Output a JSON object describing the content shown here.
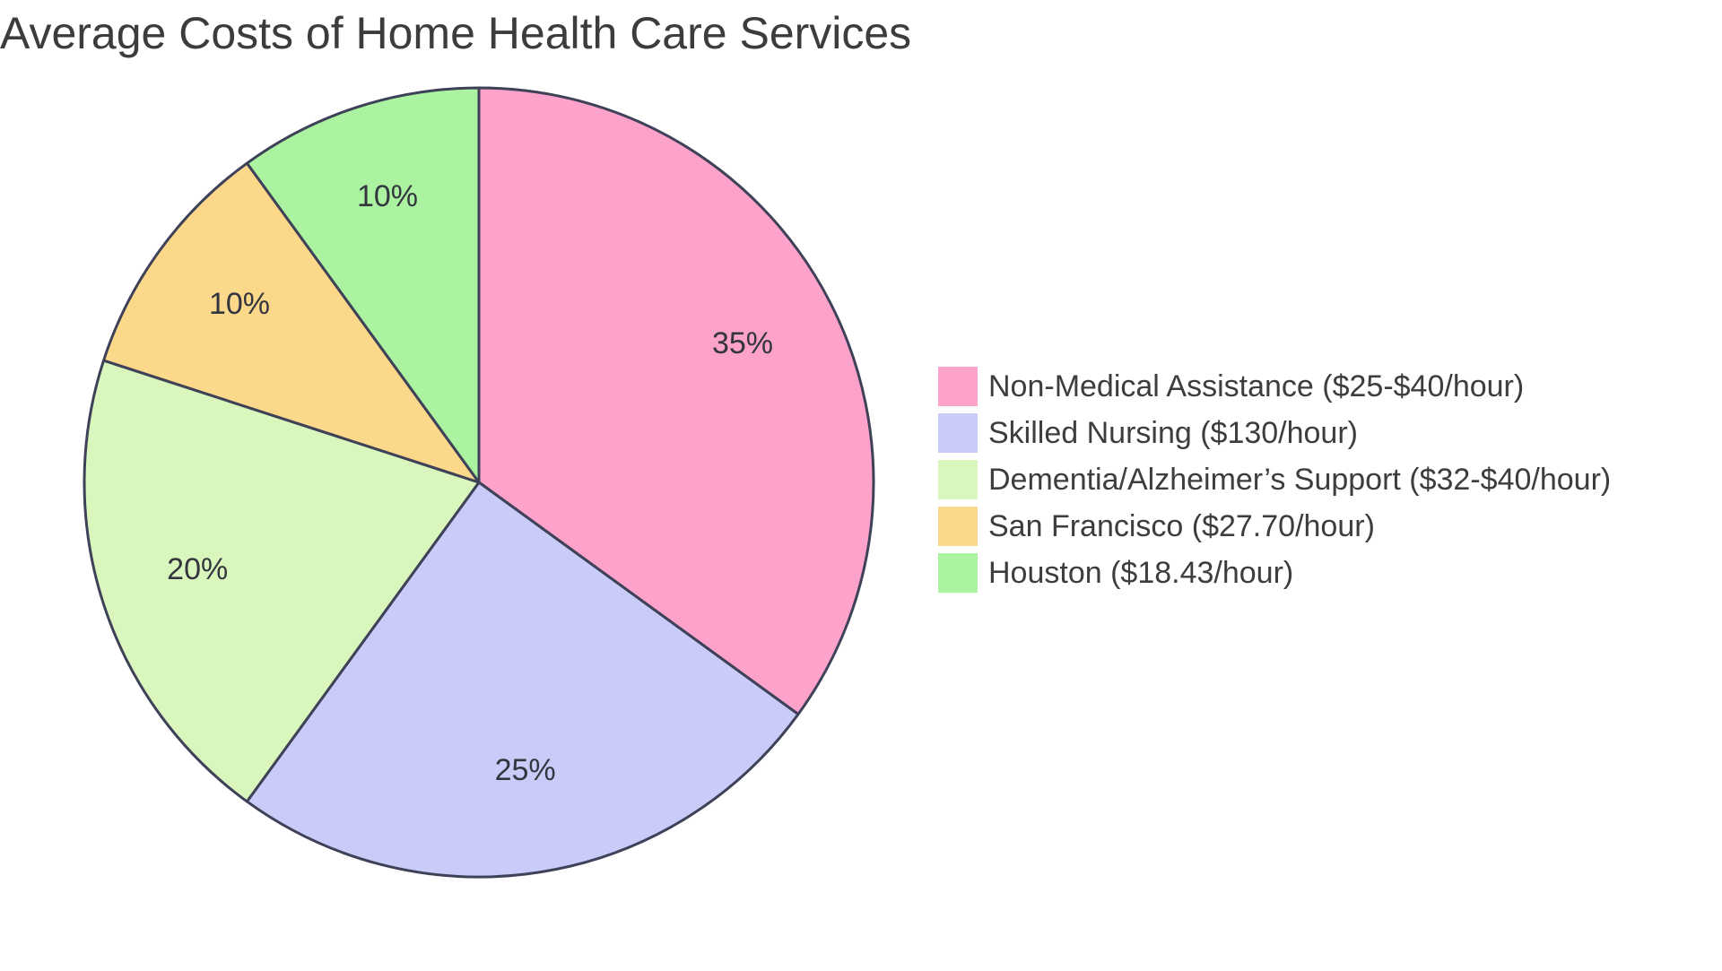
{
  "page": {
    "background_color": "#ffffff"
  },
  "chart_data": {
    "type": "pie",
    "title": "Average Costs of Home Health Care Services",
    "start_angle_deg": 0,
    "direction": "clockwise",
    "legend_position": "right-middle",
    "outline_color": "#3E4157",
    "percent_label_color": "#34363F",
    "title_color": "#3C3C3C",
    "legend_text_color": "#3D3D3D",
    "slices": [
      {
        "key": "non-medical-assistance",
        "label": "Non-Medical Assistance ($25-$40/hour)",
        "value": 35,
        "percent_label": "35%",
        "color": "#FCA2CB"
      },
      {
        "key": "skilled-nursing",
        "label": "Skilled Nursing ($130/hour)",
        "value": 25,
        "percent_label": "25%",
        "color": "#C9CCF8"
      },
      {
        "key": "dementia-alzheimers-support",
        "label": "Dementia/Alzheimer’s Support ($32-$40/hour)",
        "value": 20,
        "percent_label": "20%",
        "color": "#D9F7BD"
      },
      {
        "key": "san-francisco",
        "label": "San Francisco ($27.70/hour)",
        "value": 10,
        "percent_label": "10%",
        "color": "#FCD98A"
      },
      {
        "key": "houston",
        "label": "Houston ($18.43/hour)",
        "value": 10,
        "percent_label": "10%",
        "color": "#ABF2A1"
      }
    ]
  }
}
